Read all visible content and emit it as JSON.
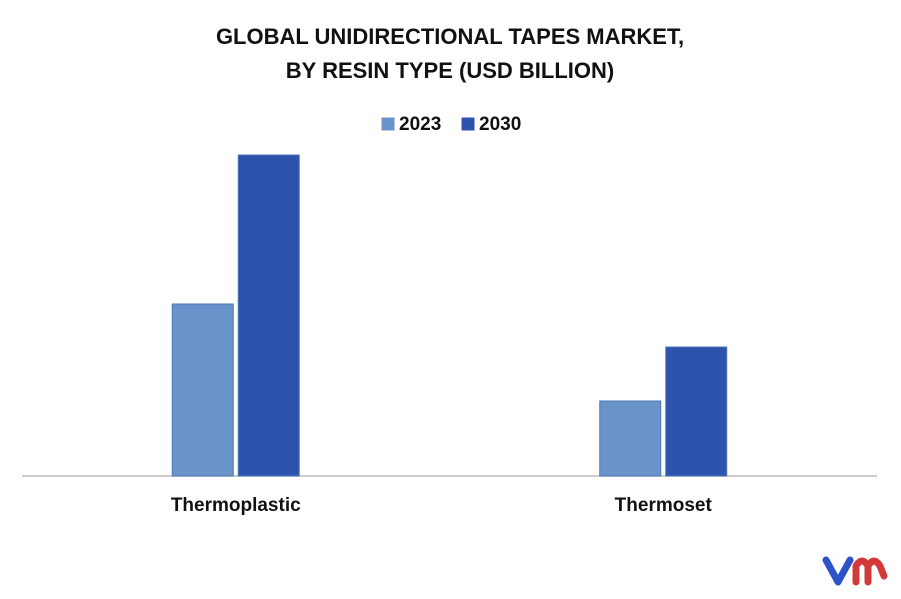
{
  "chart_data": {
    "type": "bar",
    "title": [
      "GLOBAL UNIDIRECTIONAL TAPES MARKET,",
      "BY RESIN TYPE (USD BILLION)"
    ],
    "categories": [
      "Thermoplastic",
      "Thermoset"
    ],
    "series": [
      {
        "name": "2023",
        "color": "#6a93c9",
        "values": [
          1.72,
          0.75
        ]
      },
      {
        "name": "2030",
        "color": "#2e53ac",
        "values": [
          3.21,
          1.29
        ]
      }
    ],
    "ylim": [
      0,
      3.4
    ],
    "legend": "top"
  }
}
